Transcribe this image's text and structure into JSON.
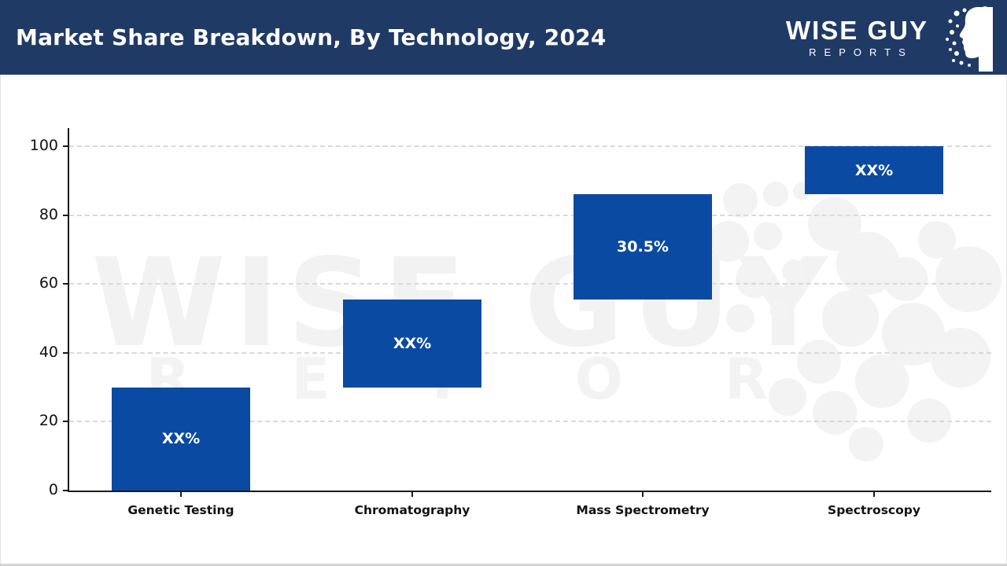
{
  "header": {
    "title": "Market Share Breakdown, By Technology, 2024",
    "logo_line1": "WISE GUY",
    "logo_line2": "REPORTS",
    "bg_color": "#203A66"
  },
  "watermark": {
    "line1": "WISE GUY",
    "line2": "R E P O R T S"
  },
  "chart_data": {
    "type": "bar",
    "subtype": "waterfall",
    "title": "Market Share Breakdown, By Technology, 2024",
    "categories": [
      "Genetic Testing",
      "Chromatography",
      "Mass Spectrometry",
      "Spectroscopy"
    ],
    "segments": [
      {
        "category": "Genetic Testing",
        "start": 0,
        "end": 30,
        "label": "XX%"
      },
      {
        "category": "Chromatography",
        "start": 30,
        "end": 55.5,
        "label": "XX%"
      },
      {
        "category": "Mass Spectrometry",
        "start": 55.5,
        "end": 86,
        "label": "30.5%"
      },
      {
        "category": "Spectroscopy",
        "start": 86,
        "end": 100,
        "label": "XX%"
      }
    ],
    "xlabel": "",
    "ylabel": "",
    "ylim": [
      0,
      105
    ],
    "yticks": [
      0,
      20,
      40,
      60,
      80,
      100
    ],
    "grid": "horizontal-dashed",
    "bar_color": "#0B4AA2",
    "bar_label_color": "#FFFFFF",
    "axis_color": "#1a1a1a",
    "grid_color": "#d9d9d9"
  }
}
